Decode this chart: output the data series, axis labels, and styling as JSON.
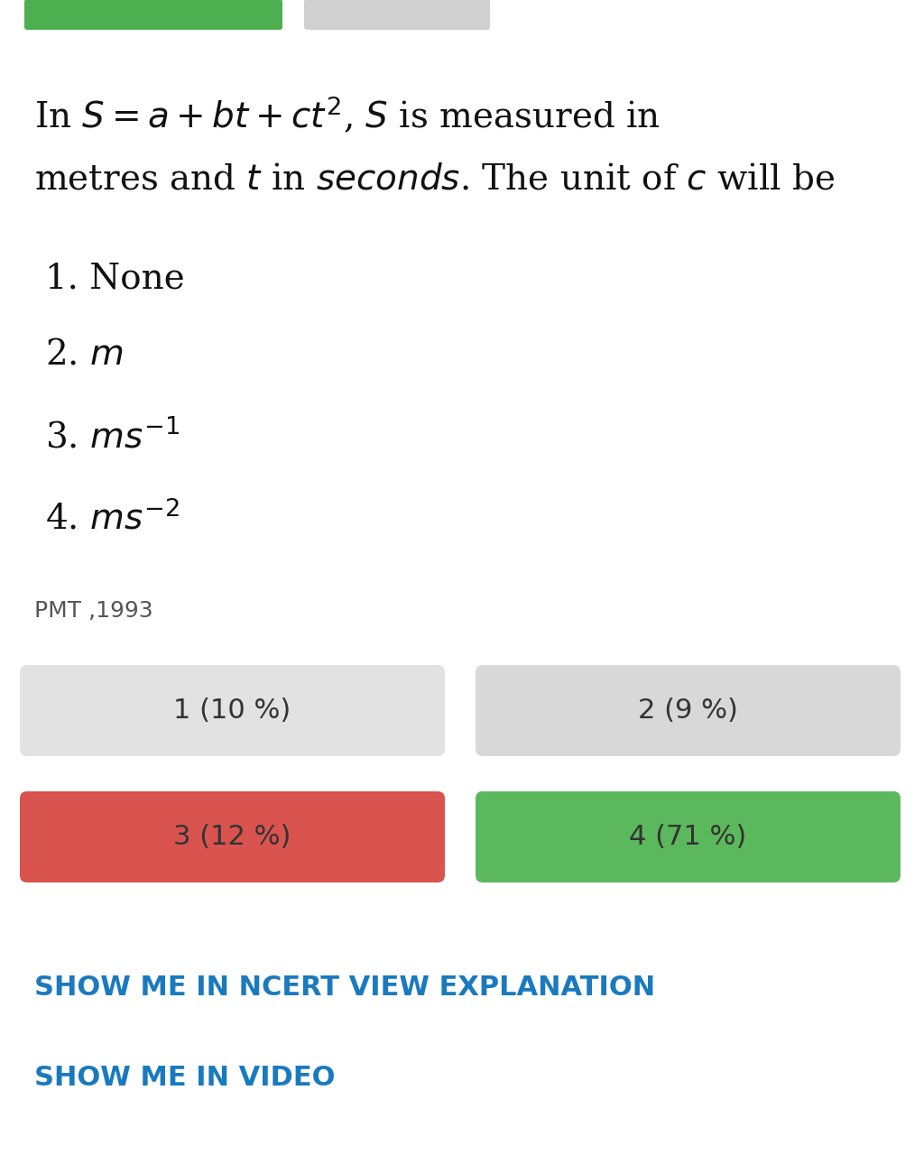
{
  "background_color": "#ffffff",
  "top_bar_color": "#4caf50",
  "question_line1": "In $S = a + bt + ct^2$, $S$ is measured in",
  "question_line2": "metres and $t$ in $\\it{seconds}$. The unit of $c$ will be",
  "options": [
    "1. None",
    "2. $m$",
    "3. $ms^{-1}$",
    "4. $ms^{-2}$"
  ],
  "source": "PMT ,1993",
  "button_labels": [
    "1 (10 %)",
    "2 (9 %)",
    "3 (12 %)",
    "4 (71 %)"
  ],
  "button_colors": [
    "#e2e2e2",
    "#d8d8d8",
    "#d9534f",
    "#5cb85c"
  ],
  "button_text_color": "#333333",
  "link1": "SHOW ME IN NCERT VIEW EXPLANATION",
  "link2": "SHOW ME IN VIDEO",
  "link_color": "#1a7abf",
  "question_fontsize": 28,
  "option_fontsize": 28,
  "source_fontsize": 18,
  "button_fontsize": 22,
  "link_fontsize": 22
}
